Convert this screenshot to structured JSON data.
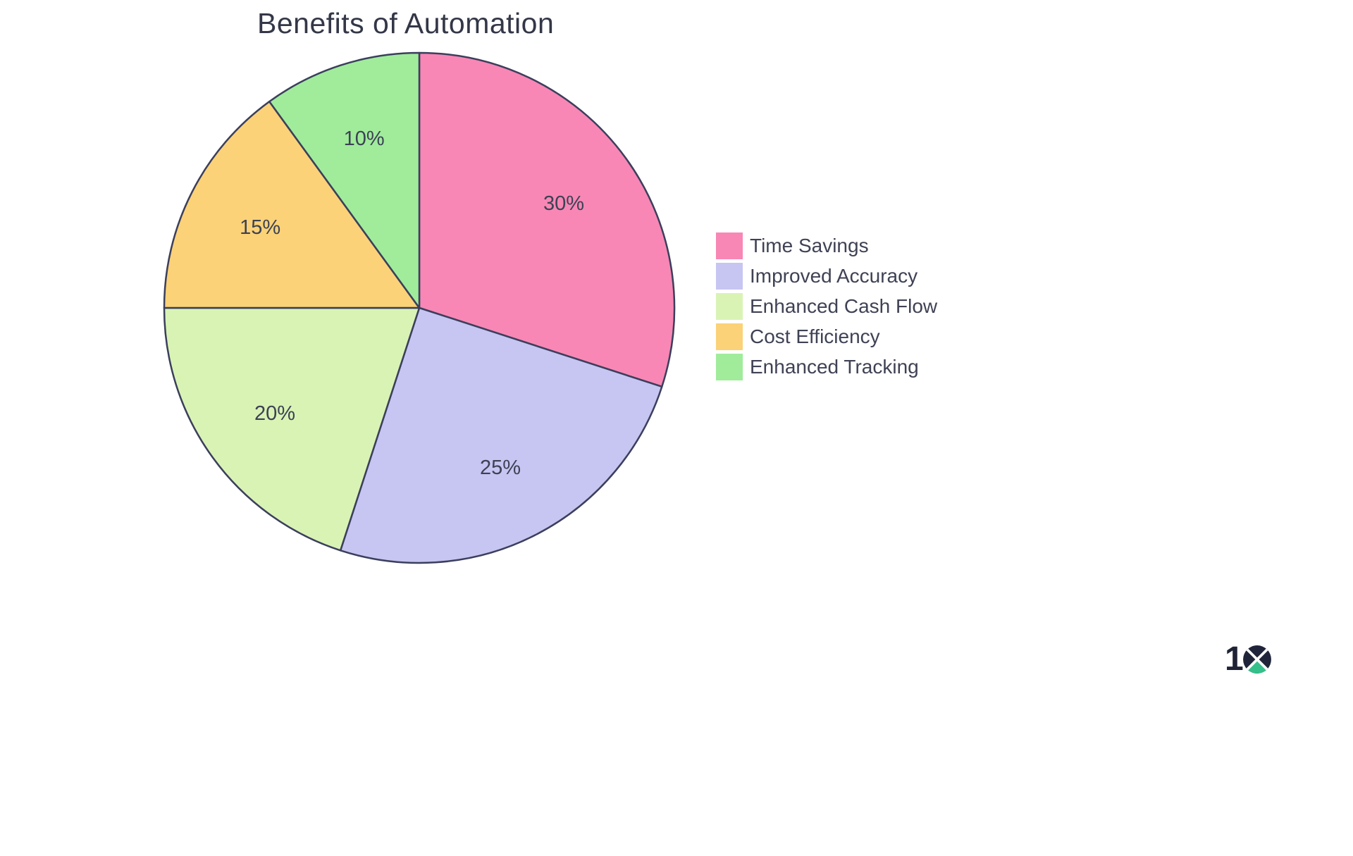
{
  "chart_data": {
    "type": "pie",
    "title": "Benefits of Automation",
    "labels": [
      "Time Savings",
      "Improved Accuracy",
      "Enhanced Cash Flow",
      "Cost Efficiency",
      "Enhanced Tracking"
    ],
    "values": [
      30,
      25,
      20,
      15,
      10
    ],
    "value_labels": [
      "30%",
      "25%",
      "20%",
      "15%",
      "10%"
    ],
    "colors": [
      "#F887B5",
      "#C7C5F2",
      "#D9F3B5",
      "#FBD277",
      "#A0EC9B"
    ],
    "outline_color": "#3B3F5C",
    "label_color": "#3C4254",
    "start_angle_deg": 0,
    "direction": "clockwise",
    "legend_position": "right",
    "grid": false
  },
  "brand": {
    "text": "1"
  }
}
